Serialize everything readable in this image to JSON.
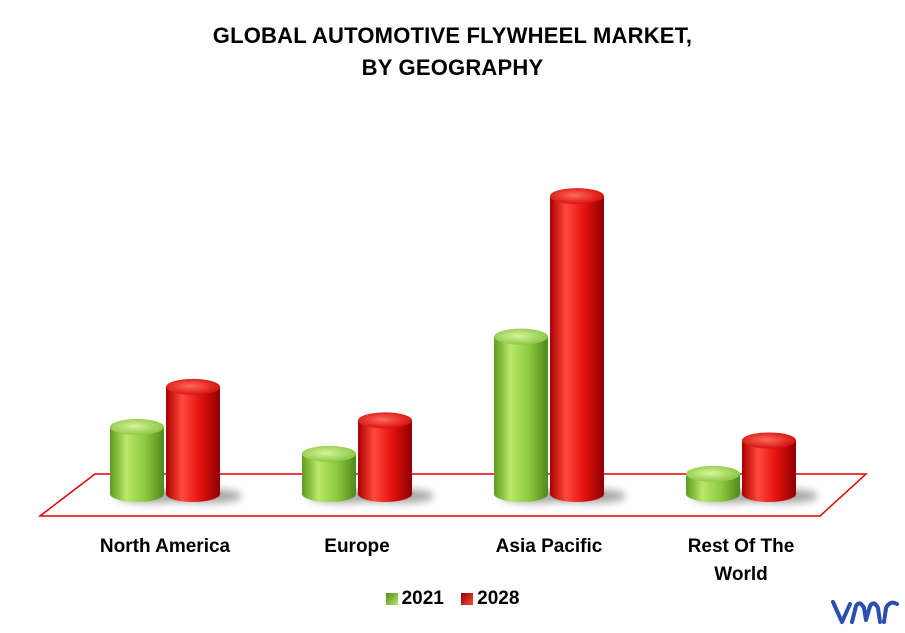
{
  "chart_data": {
    "type": "bar",
    "title_lines": [
      "GLOBAL AUTOMOTIVE FLYWHEEL MARKET,",
      "BY GEOGRAPHY"
    ],
    "categories": [
      "North America",
      "Europe",
      "Asia Pacific",
      "Rest Of The World"
    ],
    "series": [
      {
        "name": "2021",
        "color": "#7dc242",
        "values": [
          2.0,
          1.2,
          4.7,
          0.6
        ]
      },
      {
        "name": "2028",
        "color": "#e01010",
        "values": [
          3.2,
          2.2,
          8.9,
          1.6
        ]
      }
    ],
    "xlabel": "",
    "ylabel": "",
    "ylim": [
      0,
      9.5
    ],
    "grid": false,
    "legend_position": "bottom-center",
    "floor_outline_color": "#e00000"
  },
  "logo": {
    "name": "vmr-logo",
    "color": "#2b4db0"
  }
}
